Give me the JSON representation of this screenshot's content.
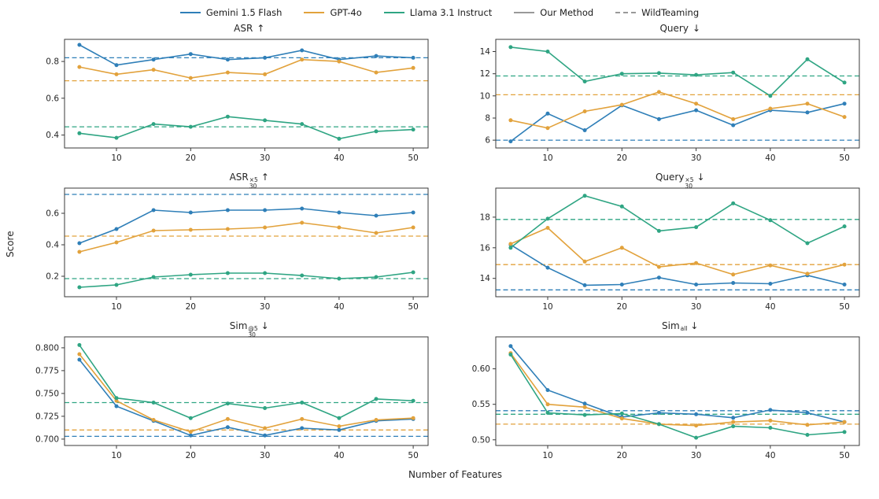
{
  "colors": {
    "blue": "#2f7fb8",
    "orange": "#e2a23c",
    "green": "#2fa583",
    "gray": "#999999",
    "spine": "#3a3a3a"
  },
  "legend": {
    "items": [
      {
        "label": "Gemini 1.5 Flash",
        "color": "blue",
        "dash": false
      },
      {
        "label": "GPT-4o",
        "color": "orange",
        "dash": false
      },
      {
        "label": "Llama 3.1 Instruct",
        "color": "green",
        "dash": false
      },
      {
        "label": "Our Method",
        "color": "gray",
        "dash": false
      },
      {
        "label": "WildTeaming",
        "color": "gray",
        "dash": true
      }
    ]
  },
  "labels": {
    "ylabel": "Score",
    "xlabel": "Number of Features"
  },
  "xticks": [
    10,
    20,
    30,
    40,
    50
  ],
  "chart_data": [
    {
      "type": "line",
      "title": {
        "base": "ASR",
        "sup": "",
        "sub": "",
        "arrow": "↑"
      },
      "x": [
        5,
        10,
        15,
        20,
        25,
        30,
        35,
        40,
        45,
        50
      ],
      "ylim": [
        0.33,
        0.92
      ],
      "yticks": [
        0.4,
        0.6,
        0.8
      ],
      "ydecimals": 1,
      "series": [
        {
          "name": "Gemini 1.5 Flash",
          "color": "blue",
          "values": [
            0.89,
            0.78,
            0.81,
            0.84,
            0.81,
            0.82,
            0.86,
            0.81,
            0.83,
            0.82
          ]
        },
        {
          "name": "GPT-4o",
          "color": "orange",
          "values": [
            0.77,
            0.73,
            0.755,
            0.71,
            0.74,
            0.73,
            0.81,
            0.8,
            0.74,
            0.765
          ]
        },
        {
          "name": "Llama 3.1 Instruct",
          "color": "green",
          "values": [
            0.41,
            0.385,
            0.46,
            0.445,
            0.5,
            0.48,
            0.46,
            0.38,
            0.42,
            0.43
          ]
        }
      ],
      "hlines": [
        {
          "color": "blue",
          "y": 0.82
        },
        {
          "color": "orange",
          "y": 0.695
        },
        {
          "color": "green",
          "y": 0.445
        }
      ]
    },
    {
      "type": "line",
      "title": {
        "base": "Query",
        "sup": "",
        "sub": "",
        "arrow": "↓"
      },
      "x": [
        5,
        10,
        15,
        20,
        25,
        30,
        35,
        40,
        45,
        50
      ],
      "ylim": [
        5.3,
        15.1
      ],
      "yticks": [
        6,
        8,
        10,
        12,
        14
      ],
      "ydecimals": 0,
      "series": [
        {
          "name": "Gemini 1.5 Flash",
          "color": "blue",
          "values": [
            5.9,
            8.4,
            6.9,
            9.15,
            7.9,
            8.7,
            7.35,
            8.7,
            8.5,
            9.3
          ]
        },
        {
          "name": "GPT-4o",
          "color": "orange",
          "values": [
            7.8,
            7.1,
            8.6,
            9.2,
            10.35,
            9.3,
            7.9,
            8.85,
            9.3,
            8.1
          ]
        },
        {
          "name": "Llama 3.1 Instruct",
          "color": "green",
          "values": [
            14.4,
            14.0,
            11.3,
            12.0,
            12.05,
            11.9,
            12.1,
            10.0,
            13.3,
            11.2
          ]
        }
      ],
      "hlines": [
        {
          "color": "green",
          "y": 11.8
        },
        {
          "color": "orange",
          "y": 10.1
        },
        {
          "color": "blue",
          "y": 6.0
        }
      ]
    },
    {
      "type": "line",
      "title": {
        "base": "ASR",
        "sup": "×5",
        "sub": "30",
        "arrow": "↑"
      },
      "x": [
        5,
        10,
        15,
        20,
        25,
        30,
        35,
        40,
        45,
        50
      ],
      "ylim": [
        0.07,
        0.76
      ],
      "yticks": [
        0.2,
        0.4,
        0.6
      ],
      "ydecimals": 1,
      "series": [
        {
          "name": "Gemini 1.5 Flash",
          "color": "blue",
          "values": [
            0.41,
            0.5,
            0.62,
            0.605,
            0.62,
            0.62,
            0.63,
            0.605,
            0.585,
            0.605
          ]
        },
        {
          "name": "GPT-4o",
          "color": "orange",
          "values": [
            0.355,
            0.415,
            0.49,
            0.495,
            0.5,
            0.51,
            0.54,
            0.51,
            0.475,
            0.51
          ]
        },
        {
          "name": "Llama 3.1 Instruct",
          "color": "green",
          "values": [
            0.13,
            0.145,
            0.195,
            0.21,
            0.22,
            0.22,
            0.205,
            0.185,
            0.195,
            0.225
          ]
        }
      ],
      "hlines": [
        {
          "color": "blue",
          "y": 0.72
        },
        {
          "color": "orange",
          "y": 0.455
        },
        {
          "color": "green",
          "y": 0.185
        }
      ]
    },
    {
      "type": "line",
      "title": {
        "base": "Query",
        "sup": "×5",
        "sub": "30",
        "arrow": "↓"
      },
      "x": [
        5,
        10,
        15,
        20,
        25,
        30,
        35,
        40,
        45,
        50
      ],
      "ylim": [
        12.8,
        19.9
      ],
      "yticks": [
        14,
        16,
        18
      ],
      "ydecimals": 0,
      "series": [
        {
          "name": "Gemini 1.5 Flash",
          "color": "blue",
          "values": [
            16.2,
            14.7,
            13.55,
            13.6,
            14.05,
            13.6,
            13.7,
            13.65,
            14.2,
            13.6
          ]
        },
        {
          "name": "GPT-4o",
          "color": "orange",
          "values": [
            16.25,
            17.3,
            15.1,
            16.0,
            14.75,
            15.0,
            14.25,
            14.85,
            14.3,
            14.9
          ]
        },
        {
          "name": "Llama 3.1 Instruct",
          "color": "green",
          "values": [
            16.0,
            17.9,
            19.4,
            18.7,
            17.1,
            17.35,
            18.9,
            17.8,
            16.3,
            17.4
          ]
        }
      ],
      "hlines": [
        {
          "color": "green",
          "y": 17.85
        },
        {
          "color": "orange",
          "y": 14.9
        },
        {
          "color": "blue",
          "y": 13.25
        }
      ]
    },
    {
      "type": "line",
      "title": {
        "base": "Sim",
        "sup": "@5",
        "sub": "30",
        "arrow": "↓"
      },
      "x": [
        5,
        10,
        15,
        20,
        25,
        30,
        35,
        40,
        45,
        50
      ],
      "ylim": [
        0.693,
        0.812
      ],
      "yticks": [
        0.7,
        0.725,
        0.75,
        0.775,
        0.8
      ],
      "ydecimals": 3,
      "series": [
        {
          "name": "Gemini 1.5 Flash",
          "color": "blue",
          "values": [
            0.787,
            0.736,
            0.72,
            0.704,
            0.713,
            0.704,
            0.712,
            0.71,
            0.72,
            0.722
          ]
        },
        {
          "name": "GPT-4o",
          "color": "orange",
          "values": [
            0.793,
            0.742,
            0.721,
            0.708,
            0.722,
            0.712,
            0.722,
            0.714,
            0.721,
            0.723
          ]
        },
        {
          "name": "Llama 3.1 Instruct",
          "color": "green",
          "values": [
            0.803,
            0.745,
            0.74,
            0.723,
            0.739,
            0.734,
            0.74,
            0.723,
            0.744,
            0.742
          ]
        }
      ],
      "hlines": [
        {
          "color": "green",
          "y": 0.74
        },
        {
          "color": "orange",
          "y": 0.71
        },
        {
          "color": "blue",
          "y": 0.703
        }
      ]
    },
    {
      "type": "line",
      "title": {
        "base": "Sim",
        "sup": "all",
        "sub": "",
        "arrow": "↓"
      },
      "x": [
        5,
        10,
        15,
        20,
        25,
        30,
        35,
        40,
        45,
        50
      ],
      "ylim": [
        0.492,
        0.645
      ],
      "yticks": [
        0.5,
        0.55,
        0.6
      ],
      "ydecimals": 2,
      "series": [
        {
          "name": "Gemini 1.5 Flash",
          "color": "blue",
          "values": [
            0.632,
            0.57,
            0.551,
            0.532,
            0.538,
            0.536,
            0.531,
            0.542,
            0.538,
            0.525
          ]
        },
        {
          "name": "GPT-4o",
          "color": "orange",
          "values": [
            0.622,
            0.55,
            0.546,
            0.53,
            0.522,
            0.52,
            0.525,
            0.527,
            0.521,
            0.525
          ]
        },
        {
          "name": "Llama 3.1 Instruct",
          "color": "green",
          "values": [
            0.62,
            0.538,
            0.535,
            0.537,
            0.522,
            0.503,
            0.519,
            0.517,
            0.507,
            0.511
          ]
        }
      ],
      "hlines": [
        {
          "color": "blue",
          "y": 0.541
        },
        {
          "color": "green",
          "y": 0.536
        },
        {
          "color": "orange",
          "y": 0.522
        }
      ]
    }
  ]
}
